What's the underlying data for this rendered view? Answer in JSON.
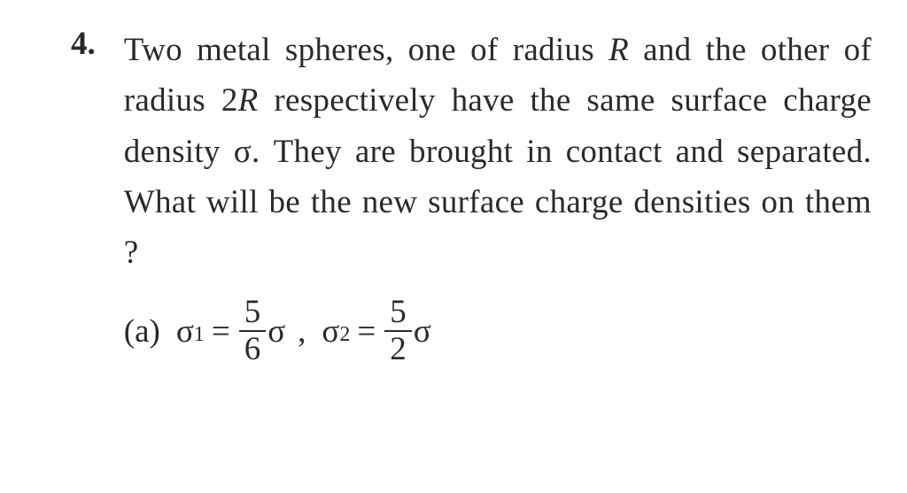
{
  "problem": {
    "number": "4.",
    "text_parts": {
      "p1": "Two metal spheres, one of radius ",
      "var_R1": "R",
      "p2": " and the other of radius 2",
      "var_R2": "R",
      "p3": " respectively have the same surface charge density ",
      "sigma0": "σ",
      "p4": ". They are brought in contact and separated. What will be the new surface charge densities on them ?"
    },
    "option": {
      "label": "(a)",
      "eq1": {
        "sigma": "σ",
        "sub": "1",
        "equals": "=",
        "num": "5",
        "den": "6",
        "sigma_post": "σ"
      },
      "comma": ",",
      "eq2": {
        "sigma": "σ",
        "sub": "2",
        "equals": "=",
        "num": "5",
        "den": "2",
        "sigma_post": "σ"
      }
    }
  },
  "style": {
    "background": "#ffffff",
    "text_color": "#2a2a2a",
    "font_size_main": 37,
    "fraction_bar_color": "#2a2a2a"
  }
}
